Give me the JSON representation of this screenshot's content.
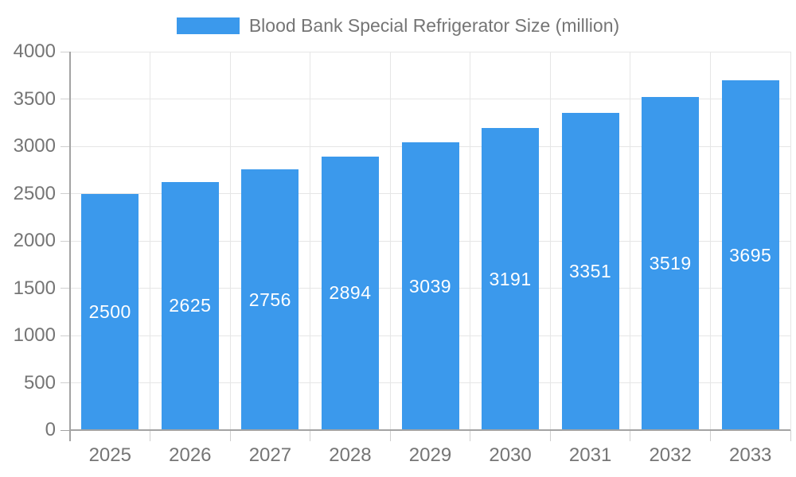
{
  "chart_data": {
    "type": "bar",
    "title": "Blood Bank Special Refrigerator Size (million)",
    "legend": {
      "label": "Blood Bank Special Refrigerator Size (million)",
      "position": "top"
    },
    "categories": [
      "2025",
      "2026",
      "2027",
      "2028",
      "2029",
      "2030",
      "2031",
      "2032",
      "2033"
    ],
    "values": [
      2500,
      2625,
      2756,
      2894,
      3039,
      3191,
      3351,
      3519,
      3695
    ],
    "xlabel": "",
    "ylabel": "",
    "ylim": [
      0,
      4000
    ],
    "yticks": [
      0,
      500,
      1000,
      1500,
      2000,
      2500,
      3000,
      3500,
      4000
    ],
    "grid": true,
    "bar_labels_shown": true,
    "colors": {
      "bar": "#3B99EC",
      "grid": "#E6E6E6",
      "tick": "#CFCFCF",
      "axis": "#A3A3A3",
      "axis_label": "#757575",
      "legend_label": "#757575",
      "bar_label": "#FFFFFF",
      "background": "#FFFFFF"
    }
  }
}
